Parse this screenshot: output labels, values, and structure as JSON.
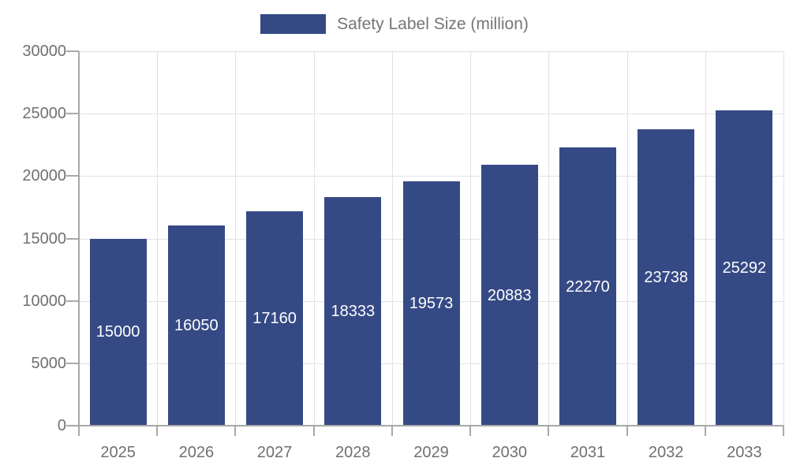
{
  "chart_data": {
    "type": "bar",
    "title": "Safety Label Size (million)",
    "categories": [
      "2025",
      "2026",
      "2027",
      "2028",
      "2029",
      "2030",
      "2031",
      "2032",
      "2033"
    ],
    "values": [
      15000,
      16050,
      17160,
      18333,
      19573,
      20883,
      22270,
      23738,
      25292
    ],
    "xlabel": "",
    "ylabel": "",
    "ylim": [
      0,
      30000
    ],
    "yticks": [
      0,
      5000,
      10000,
      15000,
      20000,
      25000,
      30000
    ],
    "grid": true,
    "legend_position": "top-center",
    "bar_labels_inside": true,
    "colors": {
      "bar": "#354a85",
      "axis": "#a8a8a8",
      "gridline": "#e2e2e7",
      "tick_text": "#707070",
      "legend_text": "#757575",
      "bar_label_text": "#ffffff"
    }
  }
}
